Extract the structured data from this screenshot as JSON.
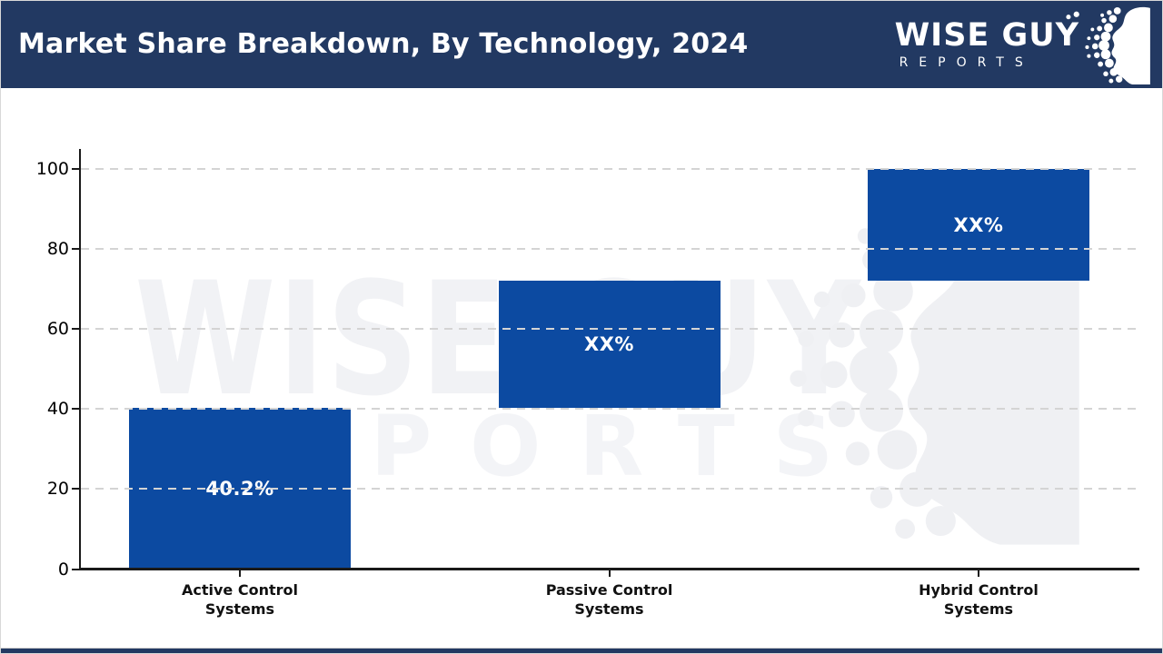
{
  "header": {
    "title": "Market Share Breakdown, By Technology, 2024",
    "background_color": "#223962",
    "logo": {
      "wordmark": "WISE GUY",
      "subtext": "REPORTS"
    }
  },
  "watermark": {
    "line1": "WISE GUY",
    "line2": "REPORTS"
  },
  "chart_data": {
    "type": "bar",
    "subtype": "waterfall",
    "title": "Market Share Breakdown, By Technology, 2024",
    "categories": [
      "Active Control Systems",
      "Passive Control Systems",
      "Hybrid Control Systems"
    ],
    "bars": [
      {
        "category": "Active Control Systems",
        "start": 0,
        "end": 40.2,
        "label": "40.2%",
        "value": 40.2
      },
      {
        "category": "Passive Control Systems",
        "start": 40.2,
        "end": 72,
        "label": "XX%",
        "value_estimated": 31.8
      },
      {
        "category": "Hybrid Control Systems",
        "start": 72,
        "end": 100,
        "label": "XX%",
        "value_estimated": 28
      }
    ],
    "ylim": [
      0,
      100
    ],
    "yticks": [
      0,
      20,
      40,
      60,
      80,
      100
    ],
    "xlabel": "",
    "ylabel": "",
    "grid": "horizontal-dashed",
    "bar_color": "#0c4aa1",
    "bar_label_color": "#ffffff",
    "axis_color": "#1a1a1a",
    "gridline_color": "#d4d4d4"
  },
  "footer": {
    "color": "#223962"
  }
}
